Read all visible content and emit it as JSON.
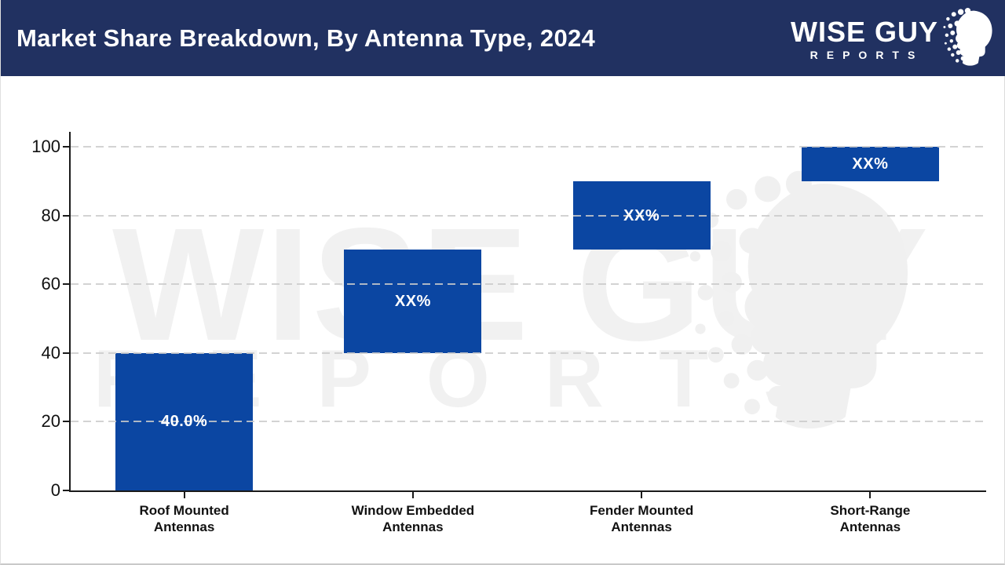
{
  "header": {
    "title": "Market Share Breakdown, By Antenna Type, 2024",
    "bg_color": "#213161",
    "logo": {
      "line1": "WISE GUY",
      "line2": "REPORTS"
    }
  },
  "watermark": {
    "line1": "WISE GUY",
    "line2": "REPORTS"
  },
  "chart_data": {
    "type": "bar",
    "subtype": "waterfall-segments",
    "title": "Market Share Breakdown, By Antenna Type, 2024",
    "categories": [
      "Roof Mounted\nAntennas",
      "Window Embedded\nAntennas",
      "Fender Mounted\nAntennas",
      "Short-Range\nAntennas"
    ],
    "bars": [
      {
        "category": "Roof Mounted Antennas",
        "start": 0,
        "end": 40,
        "label": "40.0%"
      },
      {
        "category": "Window Embedded Antennas",
        "start": 40,
        "end": 70,
        "label": "XX%"
      },
      {
        "category": "Fender Mounted Antennas",
        "start": 70,
        "end": 90,
        "label": "XX%"
      },
      {
        "category": "Short-Range Antennas",
        "start": 90,
        "end": 100,
        "label": "XX%"
      }
    ],
    "y_ticks": [
      0,
      20,
      40,
      60,
      80,
      100
    ],
    "ylim": [
      0,
      104
    ],
    "xlabel": "",
    "ylabel": "",
    "grid": "horizontal-dashed",
    "legend": "none",
    "bar_color": "#0b46a2",
    "bar_label_color": "#ffffff",
    "axis_color": "#1a1a1a",
    "grid_color": "#d6d6d6"
  }
}
